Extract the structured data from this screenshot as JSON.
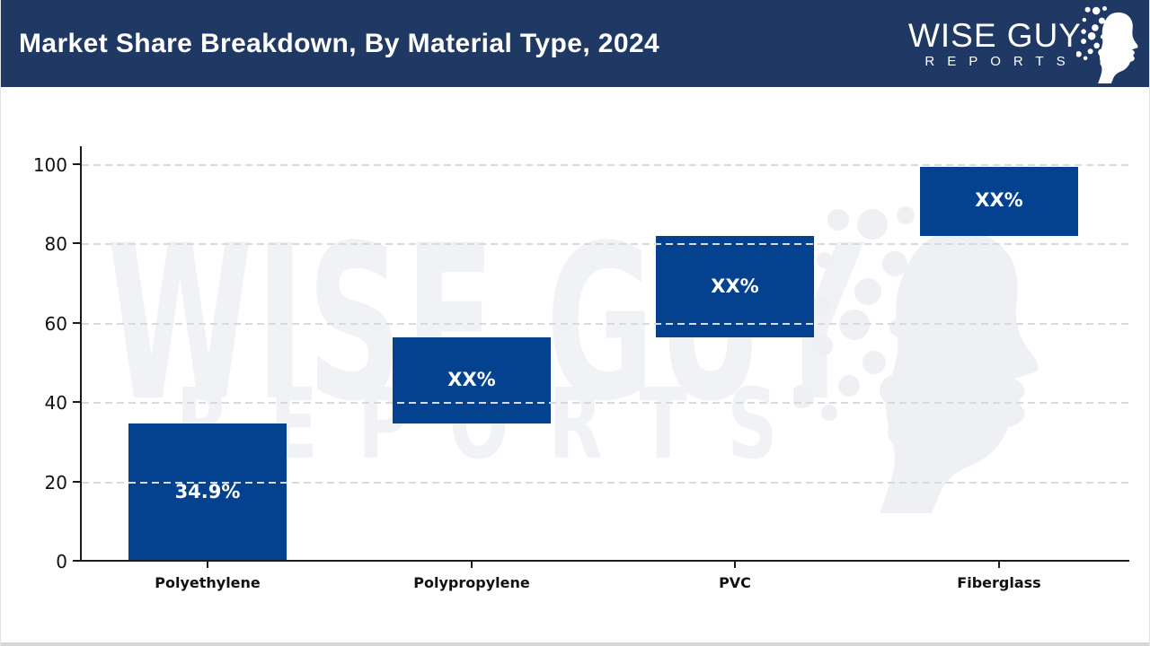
{
  "page": {
    "header": {
      "title": "Market Share Breakdown, By Material Type, 2024",
      "bg_color": "#1f3864",
      "logo": {
        "line1": "WISE GUY",
        "line2": "REPORTS"
      }
    },
    "watermark": {
      "line1": "WISE GUY",
      "line2": "REPORTS"
    },
    "footer_strip_color": "#d6d6d6"
  },
  "chart_data": {
    "type": "bar",
    "subtype": "floating-segment waterfall of market share",
    "title": "Market Share Breakdown, By Material Type, 2024",
    "categories": [
      "Polyethylene",
      "Polypropylene",
      "PVC",
      "Fiberglass"
    ],
    "segments": [
      {
        "category": "Polyethylene",
        "start": 0,
        "end": 34.9,
        "label": "34.9%"
      },
      {
        "category": "Polypropylene",
        "start": 34.9,
        "end": 56.5,
        "label": "XX%"
      },
      {
        "category": "PVC",
        "start": 56.5,
        "end": 82.1,
        "label": "XX%"
      },
      {
        "category": "Fiberglass",
        "start": 82.1,
        "end": 99.6,
        "label": "XX%"
      }
    ],
    "y_ticks": [
      0,
      20,
      40,
      60,
      80,
      100
    ],
    "ylim": [
      0,
      105
    ],
    "xlabel": "",
    "ylabel": "",
    "bar_color": "#04428f",
    "bar_label_color": "#ffffff",
    "axis_color": "#1b1b1b",
    "grid": "horizontal dashed, drawn over bars",
    "legend": "none"
  }
}
